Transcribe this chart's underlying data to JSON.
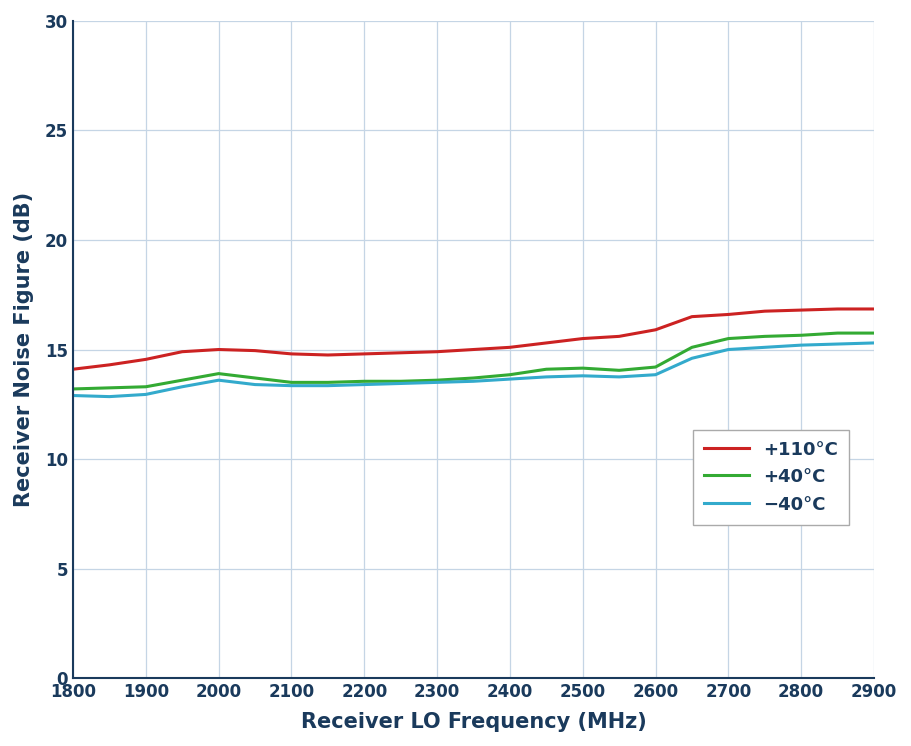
{
  "x": [
    1800,
    1850,
    1900,
    1950,
    2000,
    2050,
    2100,
    2150,
    2200,
    2250,
    2300,
    2350,
    2400,
    2450,
    2500,
    2550,
    2600,
    2650,
    2700,
    2750,
    2800,
    2850,
    2900
  ],
  "red_110": [
    14.1,
    14.3,
    14.55,
    14.9,
    15.0,
    14.95,
    14.8,
    14.75,
    14.8,
    14.85,
    14.9,
    15.0,
    15.1,
    15.3,
    15.5,
    15.6,
    15.9,
    16.5,
    16.6,
    16.75,
    16.8,
    16.85,
    16.85
  ],
  "green_40": [
    13.2,
    13.25,
    13.3,
    13.6,
    13.9,
    13.7,
    13.5,
    13.5,
    13.55,
    13.55,
    13.6,
    13.7,
    13.85,
    14.1,
    14.15,
    14.05,
    14.2,
    15.1,
    15.5,
    15.6,
    15.65,
    15.75,
    15.75
  ],
  "cyan_n40": [
    12.9,
    12.85,
    12.95,
    13.3,
    13.6,
    13.4,
    13.35,
    13.35,
    13.4,
    13.45,
    13.5,
    13.55,
    13.65,
    13.75,
    13.8,
    13.75,
    13.85,
    14.6,
    15.0,
    15.1,
    15.2,
    15.25,
    15.3
  ],
  "line_color_red": "#CC2222",
  "line_color_green": "#33AA33",
  "line_color_cyan": "#33AACC",
  "xlabel": "Receiver LO Frequency (MHz)",
  "ylabel": "Receiver Noise Figure (dB)",
  "xlim": [
    1800,
    2900
  ],
  "ylim": [
    0,
    30
  ],
  "xticks": [
    1800,
    1900,
    2000,
    2100,
    2200,
    2300,
    2400,
    2500,
    2600,
    2700,
    2800,
    2900
  ],
  "yticks": [
    0,
    5,
    10,
    15,
    20,
    25,
    30
  ],
  "legend_labels": [
    "+110°C",
    "+40°C",
    "−40°C"
  ],
  "grid_color": "#c5d5e5",
  "background_color": "#ffffff",
  "axis_label_color": "#1a3a5c",
  "tick_color": "#1a3a5c",
  "spine_color": "#1a3a5c",
  "label_fontsize": 15,
  "tick_fontsize": 12,
  "line_width": 2.2,
  "figsize": [
    9.11,
    7.46
  ],
  "dpi": 100
}
